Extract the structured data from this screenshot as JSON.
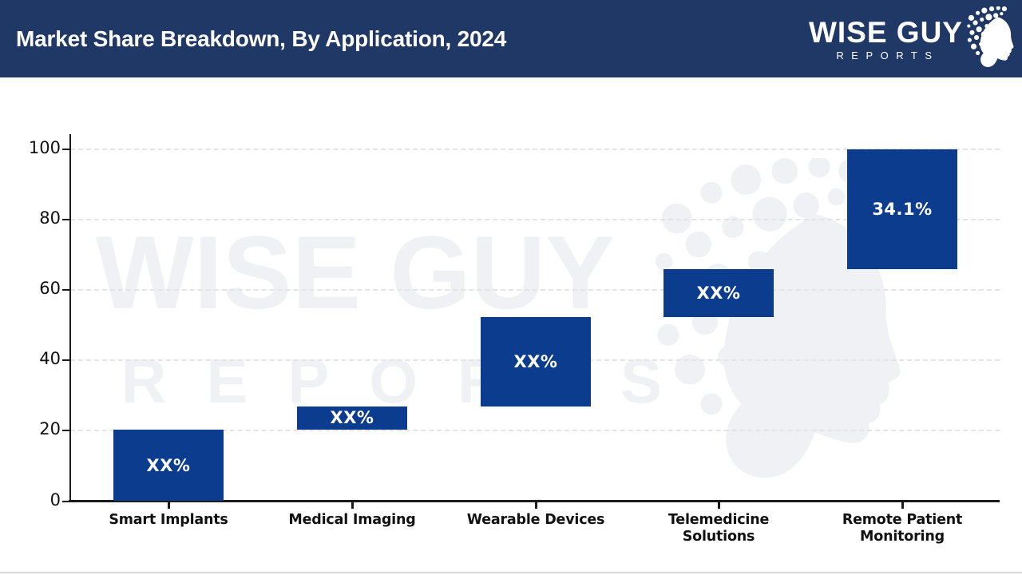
{
  "header": {
    "title": "Market Share Breakdown, By Application, 2024",
    "logo": {
      "line1": "WISE GUY",
      "line2": "REPORTS"
    }
  },
  "watermark": {
    "line1": "WISE GUY",
    "line2": "REPORTS"
  },
  "chart_data": {
    "type": "bar",
    "subtype": "waterfall",
    "title": "Market Share Breakdown, By Application, 2024",
    "categories": [
      "Smart Implants",
      "Medical Imaging",
      "Wearable Devices",
      "Telemedicine Solutions",
      "Remote Patient Monitoring"
    ],
    "tick_labels": [
      "Smart Implants",
      "Medical Imaging",
      "Wearable Devices",
      "Telemedicine\nSolutions",
      "Remote Patient\nMonitoring"
    ],
    "segments": [
      {
        "category": "Smart Implants",
        "start": 0,
        "end": 20.4,
        "label": "XX%"
      },
      {
        "category": "Medical Imaging",
        "start": 20.4,
        "end": 26.9,
        "label": "XX%"
      },
      {
        "category": "Wearable Devices",
        "start": 26.9,
        "end": 52.3,
        "label": "XX%"
      },
      {
        "category": "Telemedicine Solutions",
        "start": 52.3,
        "end": 65.9,
        "label": "XX%"
      },
      {
        "category": "Remote Patient Monitoring",
        "start": 65.9,
        "end": 100,
        "label": "34.1%"
      }
    ],
    "xlabel": "",
    "ylabel": "",
    "ylim": [
      0,
      100
    ],
    "yticks": [
      0,
      20,
      40,
      60,
      80,
      100
    ],
    "grid": "horizontal-dashed",
    "legend": "none",
    "bar_color": "#0c3c8e",
    "bar_label_color": "#ffffff",
    "axis_color": "#1a1a1a",
    "grid_color": "#e4e4e6",
    "background": "#ffffff",
    "header_bg": "#1f3865",
    "watermark_color": "#f0f1f4"
  }
}
